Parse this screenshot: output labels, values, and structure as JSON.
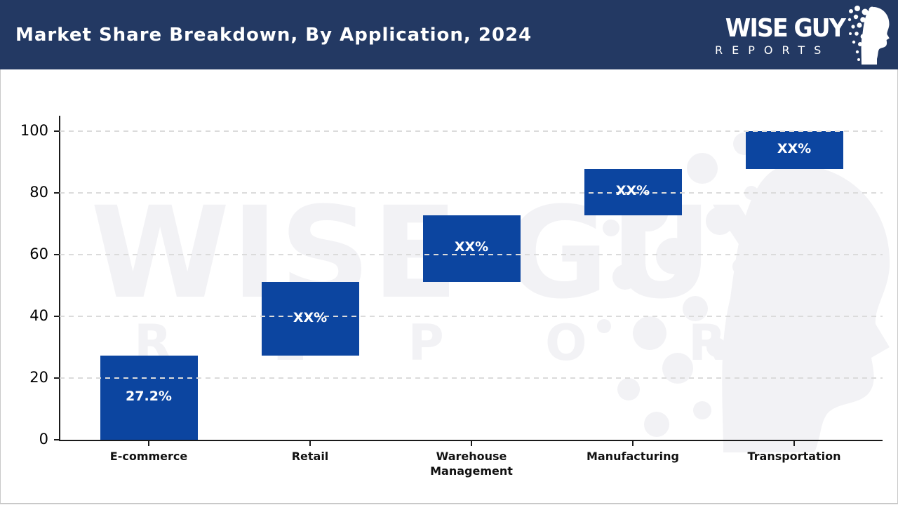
{
  "header": {
    "title": "Market Share Breakdown, By Application, 2024",
    "logo": {
      "wordmark": "WISE GUY",
      "sub": "REPORTS"
    }
  },
  "watermark": {
    "wordmark": "WISE GUY",
    "sub": "R E P O R T S"
  },
  "chart_data": {
    "type": "bar",
    "subtype": "waterfall",
    "title": "Market Share Breakdown, By Application, 2024",
    "categories": [
      "E-commerce",
      "Retail",
      "Warehouse Management",
      "Manufacturing",
      "Transportation"
    ],
    "segments": [
      {
        "category": "E-commerce",
        "start": 0,
        "end": 27.2,
        "label": "27.2%"
      },
      {
        "category": "Retail",
        "start": 27.2,
        "end": 51.2,
        "label": "XX%"
      },
      {
        "category": "Warehouse Management",
        "start": 51.2,
        "end": 72.8,
        "label": "XX%"
      },
      {
        "category": "Manufacturing",
        "start": 72.8,
        "end": 87.8,
        "label": "XX%"
      },
      {
        "category": "Transportation",
        "start": 87.8,
        "end": 100,
        "label": "XX%"
      }
    ],
    "ylim": [
      0,
      105
    ],
    "yticks": [
      0,
      20,
      40,
      60,
      80,
      100
    ],
    "grid": "horizontal-dashed",
    "legend": "none",
    "colors": {
      "bar": "#0c45a0",
      "header_bg": "#233963",
      "grid": "#dbdbdb",
      "axis": "#1a1a1a",
      "value_label": "#ffffff",
      "watermark": "#f2f2f5"
    }
  }
}
